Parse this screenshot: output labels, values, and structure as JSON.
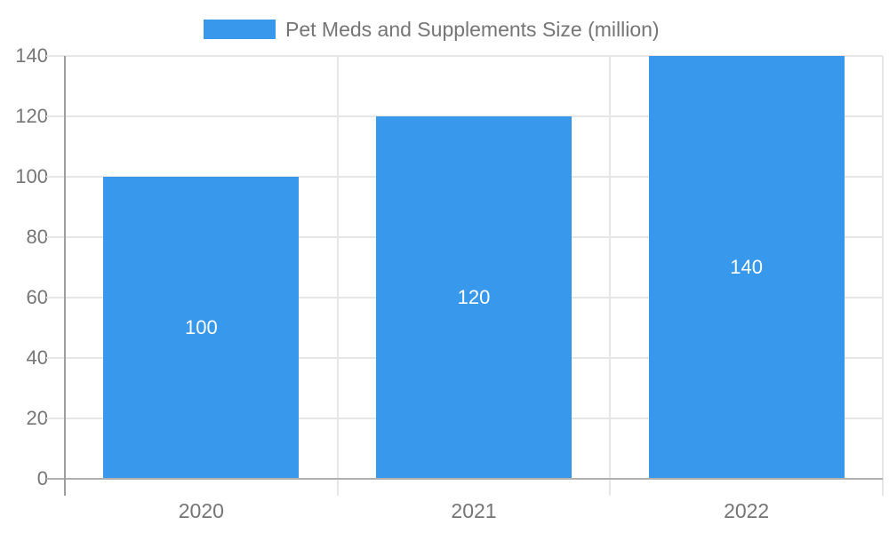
{
  "legend": {
    "label": "Pet Meds and Supplements Size (million)"
  },
  "colors": {
    "bar": "#3898EC",
    "axis_text": "#757575",
    "axis_line": "#9E9E9E",
    "baseline": "#B0B0B0",
    "gridline": "#E6E6E6",
    "data_label": "#FFFFFF",
    "background": "#FFFFFF"
  },
  "chart_data": {
    "type": "bar",
    "title": "Pet Meds and Supplements Size (million)",
    "categories": [
      "2020",
      "2021",
      "2022"
    ],
    "values": [
      100,
      120,
      140
    ],
    "series": [
      {
        "name": "Pet Meds and Supplements Size (million)",
        "values": [
          100,
          120,
          140
        ]
      }
    ],
    "data_labels": [
      "100",
      "120",
      "140"
    ],
    "xlabel": "",
    "ylabel": "",
    "ylim": [
      0,
      140
    ],
    "yticks": [
      0,
      20,
      40,
      60,
      80,
      100,
      120,
      140
    ],
    "grid": true,
    "legend_position": "top"
  }
}
